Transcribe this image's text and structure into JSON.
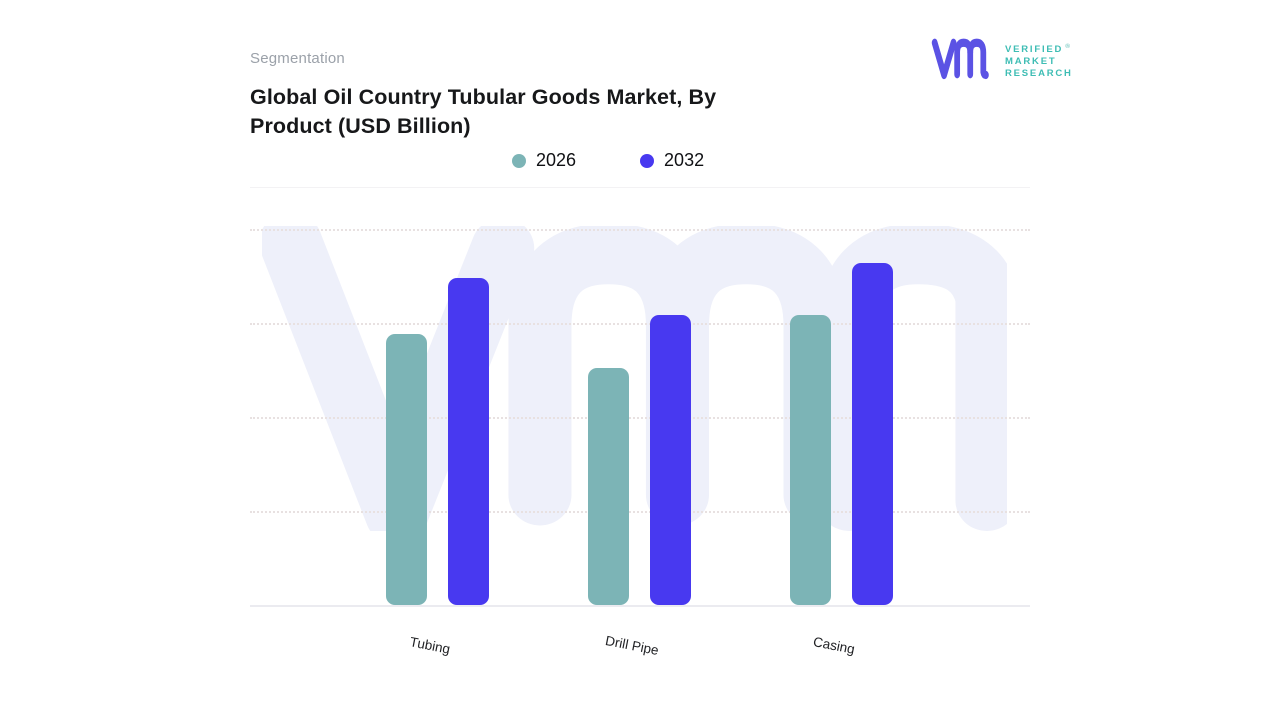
{
  "header": {
    "kicker": "Segmentation",
    "title_line1": "Global Oil Country Tubular Goods Market, By",
    "title_line2": "Product (USD Billion)"
  },
  "logo": {
    "line1": "VERIFIED",
    "reg": "®",
    "line2": "MARKET",
    "line3": "RESEARCH"
  },
  "chart_data": {
    "type": "bar",
    "title": "Global Oil Country Tubular Goods Market, By Product (USD Billion)",
    "categories": [
      "Tubing",
      "Drill Pipe",
      "Casing"
    ],
    "series": [
      {
        "name": "2026",
        "color": "#7cb4b6",
        "values": [
          72,
          63,
          77
        ]
      },
      {
        "name": "2032",
        "color": "#4839f0",
        "values": [
          87,
          77,
          91
        ]
      }
    ],
    "xlabel": "",
    "ylabel": "",
    "ylim": [
      0,
      100
    ],
    "yaxis_tick_labels_visible": false,
    "values_note": "Y axis is unlabeled in the source image; values estimated as percent of plot height from gridlines",
    "gridline_values": [
      25,
      50,
      75,
      100
    ],
    "grid_style": "dotted",
    "legend_position": "top-center",
    "bar_corner_radius": 9
  },
  "colors": {
    "logo_mark": "#5b52e4",
    "logo_text": "#3ebdb4",
    "watermark": "#eef0fa",
    "title_text": "#17181a",
    "kicker_text": "#9ba1a9"
  }
}
